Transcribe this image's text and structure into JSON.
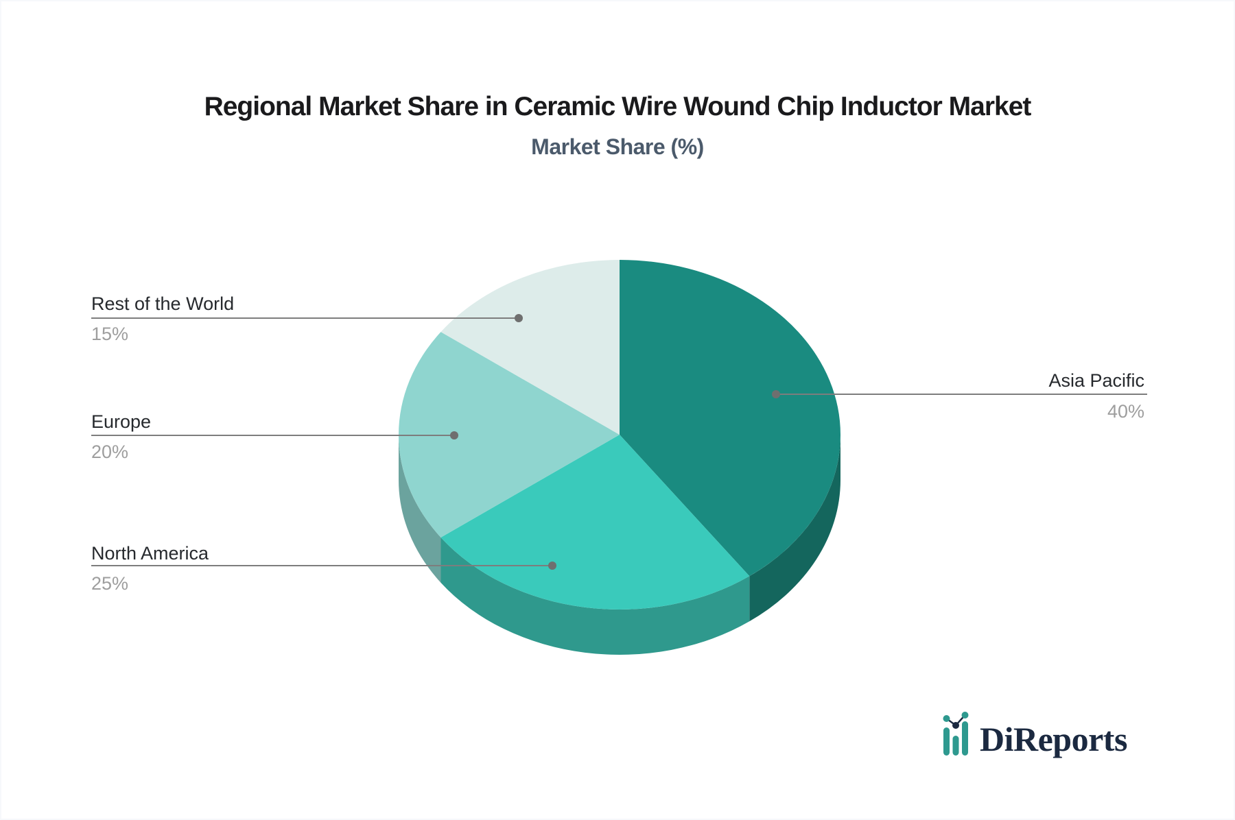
{
  "header": {
    "title": "Regional Market Share in Ceramic Wire Wound Chip Inductor Market",
    "subtitle": "Market Share (%)"
  },
  "chart_data": {
    "type": "pie",
    "style": "3d-depth",
    "title": "Regional Market Share in Ceramic Wire Wound Chip Inductor Market",
    "subtitle": "Market Share (%)",
    "unit": "%",
    "start_angle": "12-oclock",
    "direction": "clockwise",
    "legend_position": "callout-leader-lines",
    "slices": [
      {
        "label": "Asia Pacific",
        "value": 40,
        "pct_label": "40%",
        "color": "#1a8b80",
        "side_color": "#14665d"
      },
      {
        "label": "North America",
        "value": 25,
        "pct_label": "25%",
        "color": "#3acabb",
        "side_color": "#2f998d"
      },
      {
        "label": "Europe",
        "value": 20,
        "pct_label": "20%",
        "color": "#8fd5cf",
        "side_color": "#6ba39e"
      },
      {
        "label": "Rest of the World",
        "value": 15,
        "pct_label": "15%",
        "color": "#ddecea",
        "side_color": "#b7ccc9"
      }
    ],
    "colors": {
      "leader_line": "#7d7d7d",
      "leader_dot": "#6f6f6f",
      "label_text": "#26292d",
      "pct_text": "#9e9e9e"
    }
  },
  "branding": {
    "logo_text": "DiReports",
    "logo_navy": "#1b2940",
    "logo_teal": "#2e998f",
    "logo_icon": "bar-chart-with-trend-dots-icon"
  }
}
